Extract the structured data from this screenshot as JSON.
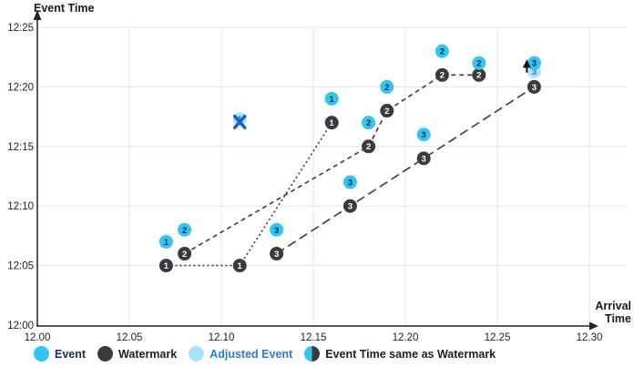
{
  "chart_data": {
    "type": "scatter",
    "title": "",
    "xlabel": "Arrival Time",
    "ylabel": "Event Time",
    "x_axis": {
      "range": [
        12.0,
        12.3
      ],
      "tick_values": [
        12.0,
        12.05,
        12.1,
        12.15,
        12.2,
        12.25,
        12.3
      ],
      "tick_labels": [
        "12.00",
        "12.05",
        "12.10",
        "12.15",
        "12.20",
        "12.25",
        "12.30"
      ]
    },
    "y_axis": {
      "range_minutes_after_12": [
        0,
        25
      ],
      "tick_values_minutes": [
        0,
        5,
        10,
        15,
        20,
        25
      ],
      "tick_labels": [
        "12:00",
        "12:05",
        "12:10",
        "12:15",
        "12:20",
        "12:25"
      ],
      "grid": true
    },
    "series": [
      {
        "name": "Event",
        "style": "event",
        "points": [
          {
            "n": 1,
            "arrival": 12.07,
            "event_min": 7,
            "event_time": "12:07"
          },
          {
            "n": 2,
            "arrival": 12.08,
            "event_min": 8,
            "event_time": "12:08"
          },
          {
            "n": 3,
            "arrival": 12.13,
            "event_min": 8,
            "event_time": "12:08"
          },
          {
            "n": 1,
            "arrival": 12.16,
            "event_min": 19,
            "event_time": "12:19"
          },
          {
            "n": 3,
            "arrival": 12.17,
            "event_min": 12,
            "event_time": "12:12"
          },
          {
            "n": 2,
            "arrival": 12.18,
            "event_min": 17,
            "event_time": "12:17"
          },
          {
            "n": 2,
            "arrival": 12.19,
            "event_min": 20,
            "event_time": "12:20"
          },
          {
            "n": 3,
            "arrival": 12.21,
            "event_min": 16,
            "event_time": "12:16"
          },
          {
            "n": 2,
            "arrival": 12.22,
            "event_min": 23,
            "event_time": "12:23"
          },
          {
            "n": 2,
            "arrival": 12.24,
            "event_min": 22,
            "event_time": "12:22"
          },
          {
            "n": 3,
            "arrival": 12.27,
            "event_min": 22,
            "event_time": "12:22"
          }
        ]
      },
      {
        "name": "Watermark",
        "style": "watermark",
        "points": [
          {
            "n": 1,
            "arrival": 12.07,
            "event_min": 5,
            "event_time": "12:05"
          },
          {
            "n": 2,
            "arrival": 12.08,
            "event_min": 6,
            "event_time": "12:06"
          },
          {
            "n": 1,
            "arrival": 12.11,
            "event_min": 5,
            "event_time": "12:05"
          },
          {
            "n": 3,
            "arrival": 12.13,
            "event_min": 6,
            "event_time": "12:06"
          },
          {
            "n": 1,
            "arrival": 12.16,
            "event_min": 17,
            "event_time": "12:17"
          },
          {
            "n": 3,
            "arrival": 12.17,
            "event_min": 10,
            "event_time": "12:10"
          },
          {
            "n": 2,
            "arrival": 12.18,
            "event_min": 15,
            "event_time": "12:15"
          },
          {
            "n": 2,
            "arrival": 12.19,
            "event_min": 18,
            "event_time": "12:18"
          },
          {
            "n": 3,
            "arrival": 12.21,
            "event_min": 14,
            "event_time": "12:14"
          },
          {
            "n": 2,
            "arrival": 12.22,
            "event_min": 21,
            "event_time": "12:21"
          },
          {
            "n": 2,
            "arrival": 12.24,
            "event_min": 21,
            "event_time": "12:21"
          },
          {
            "n": 3,
            "arrival": 12.27,
            "event_min": 20,
            "event_time": "12:20"
          }
        ]
      },
      {
        "name": "Adjusted Event",
        "style": "adjusted",
        "points": [
          {
            "n": 1,
            "arrival": 12.11,
            "event_min": 17.3,
            "event_time": "12:17",
            "crossed_out": true
          },
          {
            "n": 3,
            "arrival": 12.27,
            "event_min": 21.3,
            "event_time": "12:21"
          }
        ]
      }
    ],
    "watermark_lines": [
      {
        "substream": 1,
        "dash": "dotted",
        "points": [
          [
            12.07,
            5
          ],
          [
            12.11,
            5
          ],
          [
            12.16,
            17
          ]
        ]
      },
      {
        "substream": 2,
        "dash": "dashed",
        "points": [
          [
            12.08,
            6
          ],
          [
            12.18,
            15
          ],
          [
            12.19,
            18
          ],
          [
            12.22,
            21
          ],
          [
            12.24,
            21
          ]
        ]
      },
      {
        "substream": 3,
        "dash": "long-dash",
        "points": [
          [
            12.13,
            6
          ],
          [
            12.17,
            10
          ],
          [
            12.21,
            14
          ],
          [
            12.27,
            20
          ]
        ]
      }
    ],
    "annotations": [
      {
        "type": "up-arrow",
        "arrival": 12.266,
        "from_min": 21.2,
        "to_min": 22.3
      }
    ],
    "colors": {
      "event": "#32C5F0",
      "watermark": "#3A3A41",
      "adjusted": "#A9E3F8",
      "event_number_text": "#0B2D4F",
      "watermark_number_text": "#FFFFFF",
      "adjusted_number_text": "#2278CC",
      "cross": "#1865C1",
      "grid": "#E6E6E6",
      "axis": "#222222",
      "tick_text": "#1F1F1F"
    }
  },
  "legend": {
    "items": [
      {
        "label": "Event",
        "swatch": "event",
        "label_color": "#182F55"
      },
      {
        "label": "Watermark",
        "swatch": "watermark",
        "label_color": "#1F1F1F"
      },
      {
        "label": "Adjusted Event",
        "swatch": "adjusted",
        "label_color": "#2E7BC9"
      },
      {
        "label": "Event Time same as Watermark",
        "swatch": "half",
        "label_color": "#1F1F1F"
      }
    ]
  }
}
